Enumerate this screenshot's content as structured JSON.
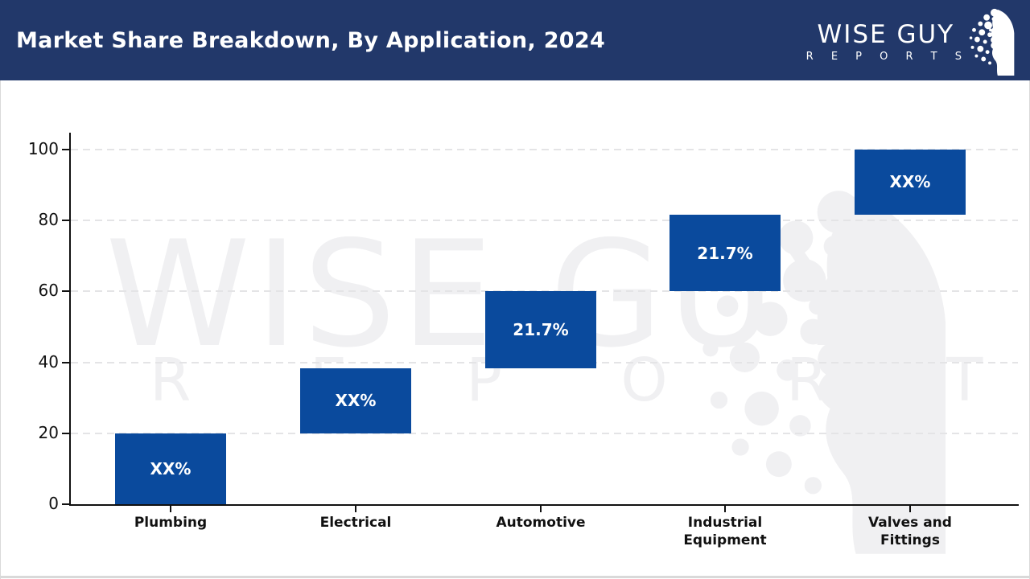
{
  "header": {
    "title": "Market Share Breakdown, By Application, 2024",
    "logo_line1": "WISE GUY",
    "logo_line2": "R E P O R T S",
    "bg_color": "#22386a"
  },
  "watermark": {
    "line1": "WISE GUY",
    "line2": "R E P O R T S"
  },
  "chart_data": {
    "type": "bar",
    "variant": "floating-waterfall",
    "title": "Market Share Breakdown, By Application, 2024",
    "categories": [
      "Plumbing",
      "Electrical",
      "Automotive",
      "Industrial Equipment",
      "Valves and Fittings"
    ],
    "segments": [
      {
        "category": "Plumbing",
        "start": 0,
        "end": 20,
        "label": "XX%"
      },
      {
        "category": "Electrical",
        "start": 20,
        "end": 38.3,
        "label": "XX%"
      },
      {
        "category": "Automotive",
        "start": 38.3,
        "end": 60,
        "label": "21.7%"
      },
      {
        "category": "Industrial Equipment",
        "start": 60,
        "end": 81.7,
        "label": "21.7%"
      },
      {
        "category": "Valves and Fittings",
        "start": 81.7,
        "end": 100,
        "label": "XX%"
      }
    ],
    "y_ticks": [
      0,
      20,
      40,
      60,
      80,
      100
    ],
    "ylim": [
      0,
      100
    ],
    "xlabel": "",
    "ylabel": "",
    "bar_color": "#0a4a9d",
    "label_color": "#ffffff",
    "grid": "horizontal-dashed",
    "legend": "none"
  }
}
